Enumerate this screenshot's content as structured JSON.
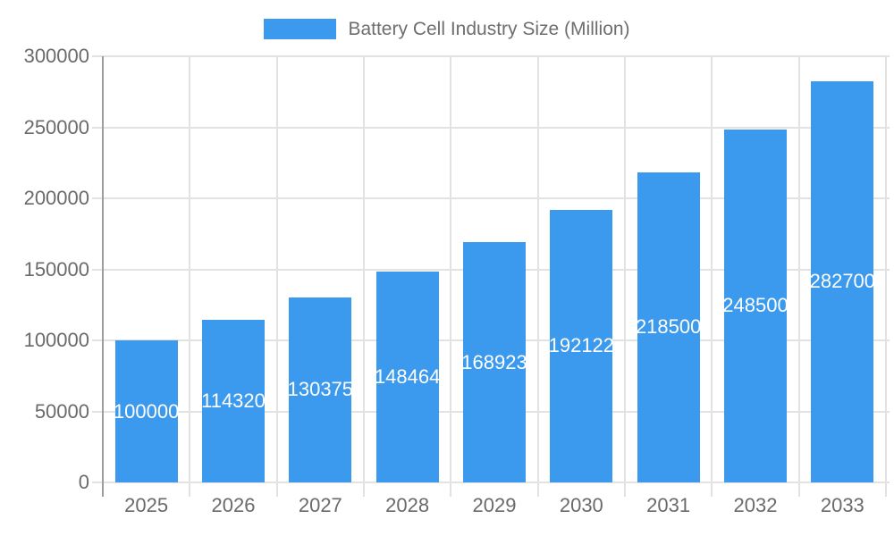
{
  "chart_data": {
    "type": "bar",
    "title": "Battery Cell Industry Size (Million)",
    "legend_position": "top",
    "categories": [
      "2025",
      "2026",
      "2027",
      "2028",
      "2029",
      "2030",
      "2031",
      "2032",
      "2033"
    ],
    "series": [
      {
        "name": "Battery Cell Industry Size (Million)",
        "values": [
          100000,
          114320,
          130375,
          148464,
          168923,
          192122,
          218500,
          248500,
          282700
        ]
      }
    ],
    "bar_labels": [
      "100000",
      "114320",
      "130375",
      "148464",
      "168923",
      "192122",
      "218500",
      "248500",
      "282700"
    ],
    "xlabel": "",
    "ylabel": "",
    "ylim": [
      0,
      300000
    ],
    "yticks": [
      0,
      50000,
      100000,
      150000,
      200000,
      250000,
      300000
    ],
    "ytick_labels": [
      "0",
      "50000",
      "100000",
      "150000",
      "200000",
      "250000",
      "300000"
    ],
    "grid": true,
    "colors": {
      "bar": "#3B99EE",
      "grid": "#E2E2E2",
      "axis": "#9C9C9C",
      "tick_text": "#6A6A6A",
      "legend_text": "#6E6E6E",
      "value_text": "#FFFFFF",
      "background": "#FFFFFF"
    }
  }
}
